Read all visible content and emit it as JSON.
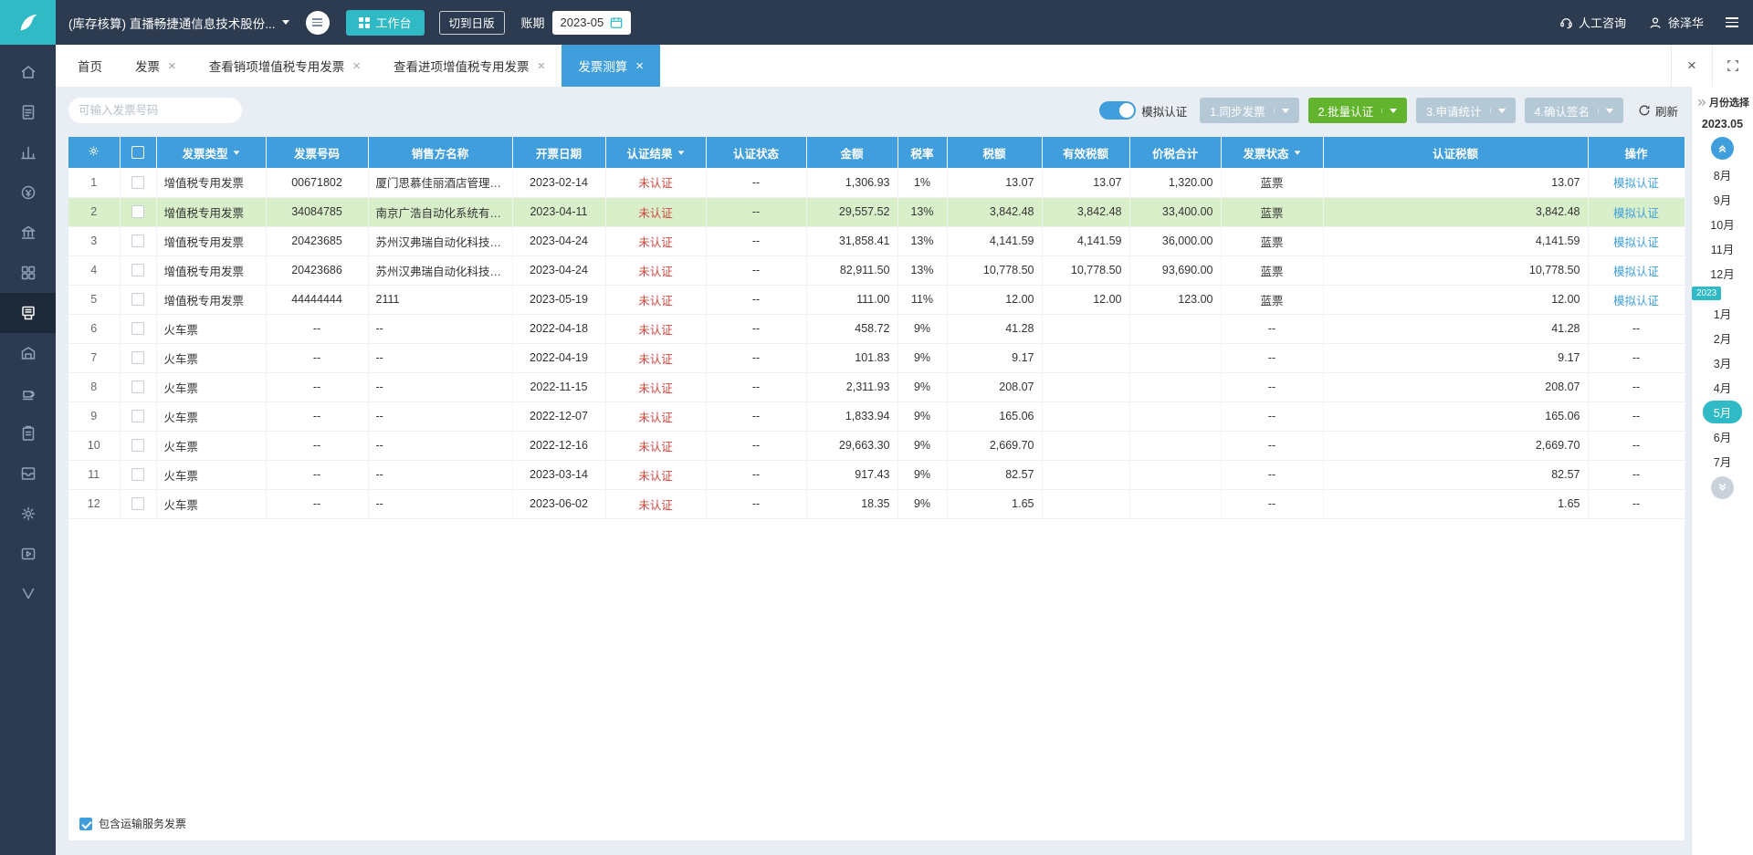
{
  "topbar": {
    "company": "(库存核算) 直播畅捷通信息技术股份...",
    "workbench_label": "工作台",
    "switch_label": "切到日版",
    "period_label": "账期",
    "period_value": "2023-05",
    "consult_label": "人工咨询",
    "username": "徐泽华"
  },
  "sidebar": {
    "items": [
      {
        "icon": "home-icon",
        "active": false
      },
      {
        "icon": "bills-icon",
        "active": false
      },
      {
        "icon": "chart-icon",
        "active": false
      },
      {
        "icon": "funds-icon",
        "active": false
      },
      {
        "icon": "bank-icon",
        "active": false
      },
      {
        "icon": "apps-icon",
        "active": false
      },
      {
        "icon": "invoice-icon",
        "active": true
      },
      {
        "icon": "warehouse-icon",
        "active": false
      },
      {
        "icon": "service-icon",
        "active": false
      },
      {
        "icon": "report-icon",
        "active": false
      },
      {
        "icon": "archive-icon",
        "active": false
      },
      {
        "icon": "settings-icon",
        "active": false
      },
      {
        "icon": "video-icon",
        "active": false
      },
      {
        "icon": "vip-icon",
        "active": false
      }
    ]
  },
  "tabs": [
    {
      "label": "首页",
      "closable": false,
      "active": false
    },
    {
      "label": "发票",
      "closable": true,
      "active": false
    },
    {
      "label": "查看销项增值税专用发票",
      "closable": true,
      "active": false
    },
    {
      "label": "查看进项增值税专用发票",
      "closable": true,
      "active": false
    },
    {
      "label": "发票测算",
      "closable": true,
      "active": true
    }
  ],
  "toolbar": {
    "search_placeholder": "可输入发票号码",
    "toggle_label": "模拟认证",
    "toggle_on": true,
    "actions": [
      {
        "label": "1.同步发票",
        "variant": "muted"
      },
      {
        "label": "2.批量认证",
        "variant": "green"
      },
      {
        "label": "3.申请统计",
        "variant": "muted"
      },
      {
        "label": "4.确认签名",
        "variant": "muted"
      }
    ],
    "refresh_label": "刷新"
  },
  "table": {
    "headers": {
      "type": "发票类型",
      "number": "发票号码",
      "seller": "销售方名称",
      "date": "开票日期",
      "result": "认证结果",
      "status": "认证状态",
      "amount": "金额",
      "rate": "税率",
      "tax": "税额",
      "valid_tax": "有效税额",
      "total": "价税合计",
      "inv_status": "发票状态",
      "auth_tax": "认证税额",
      "op": "操作"
    },
    "rows": [
      {
        "num": "1",
        "type": "增值税专用发票",
        "number": "00671802",
        "seller": "厦门思慕佳丽酒店管理有限...",
        "date": "2023-02-14",
        "result": "未认证",
        "status": "--",
        "amount": "1,306.93",
        "rate": "1%",
        "tax": "13.07",
        "valid_tax": "13.07",
        "total": "1,320.00",
        "inv_status": "蓝票",
        "auth_tax": "13.07",
        "op": "模拟认证",
        "highlight": false
      },
      {
        "num": "2",
        "type": "增值税专用发票",
        "number": "34084785",
        "seller": "南京广浩自动化系统有限责...",
        "date": "2023-04-11",
        "result": "未认证",
        "status": "--",
        "amount": "29,557.52",
        "rate": "13%",
        "tax": "3,842.48",
        "valid_tax": "3,842.48",
        "total": "33,400.00",
        "inv_status": "蓝票",
        "auth_tax": "3,842.48",
        "op": "模拟认证",
        "highlight": true
      },
      {
        "num": "3",
        "type": "增值税专用发票",
        "number": "20423685",
        "seller": "苏州汉弗瑞自动化科技有限...",
        "date": "2023-04-24",
        "result": "未认证",
        "status": "--",
        "amount": "31,858.41",
        "rate": "13%",
        "tax": "4,141.59",
        "valid_tax": "4,141.59",
        "total": "36,000.00",
        "inv_status": "蓝票",
        "auth_tax": "4,141.59",
        "op": "模拟认证",
        "highlight": false
      },
      {
        "num": "4",
        "type": "增值税专用发票",
        "number": "20423686",
        "seller": "苏州汉弗瑞自动化科技有限...",
        "date": "2023-04-24",
        "result": "未认证",
        "status": "--",
        "amount": "82,911.50",
        "rate": "13%",
        "tax": "10,778.50",
        "valid_tax": "10,778.50",
        "total": "93,690.00",
        "inv_status": "蓝票",
        "auth_tax": "10,778.50",
        "op": "模拟认证",
        "highlight": false
      },
      {
        "num": "5",
        "type": "增值税专用发票",
        "number": "44444444",
        "seller": "2111",
        "date": "2023-05-19",
        "result": "未认证",
        "status": "--",
        "amount": "111.00",
        "rate": "11%",
        "tax": "12.00",
        "valid_tax": "12.00",
        "total": "123.00",
        "inv_status": "蓝票",
        "auth_tax": "12.00",
        "op": "模拟认证",
        "highlight": false
      },
      {
        "num": "6",
        "type": "火车票",
        "number": "--",
        "seller": "--",
        "date": "2022-04-18",
        "result": "未认证",
        "status": "--",
        "amount": "458.72",
        "rate": "9%",
        "tax": "41.28",
        "valid_tax": "",
        "total": "",
        "inv_status": "--",
        "auth_tax": "41.28",
        "op": "--",
        "highlight": false
      },
      {
        "num": "7",
        "type": "火车票",
        "number": "--",
        "seller": "--",
        "date": "2022-04-19",
        "result": "未认证",
        "status": "--",
        "amount": "101.83",
        "rate": "9%",
        "tax": "9.17",
        "valid_tax": "",
        "total": "",
        "inv_status": "--",
        "auth_tax": "9.17",
        "op": "--",
        "highlight": false
      },
      {
        "num": "8",
        "type": "火车票",
        "number": "--",
        "seller": "--",
        "date": "2022-11-15",
        "result": "未认证",
        "status": "--",
        "amount": "2,311.93",
        "rate": "9%",
        "tax": "208.07",
        "valid_tax": "",
        "total": "",
        "inv_status": "--",
        "auth_tax": "208.07",
        "op": "--",
        "highlight": false
      },
      {
        "num": "9",
        "type": "火车票",
        "number": "--",
        "seller": "--",
        "date": "2022-12-07",
        "result": "未认证",
        "status": "--",
        "amount": "1,833.94",
        "rate": "9%",
        "tax": "165.06",
        "valid_tax": "",
        "total": "",
        "inv_status": "--",
        "auth_tax": "165.06",
        "op": "--",
        "highlight": false
      },
      {
        "num": "10",
        "type": "火车票",
        "number": "--",
        "seller": "--",
        "date": "2022-12-16",
        "result": "未认证",
        "status": "--",
        "amount": "29,663.30",
        "rate": "9%",
        "tax": "2,669.70",
        "valid_tax": "",
        "total": "",
        "inv_status": "--",
        "auth_tax": "2,669.70",
        "op": "--",
        "highlight": false
      },
      {
        "num": "11",
        "type": "火车票",
        "number": "--",
        "seller": "--",
        "date": "2023-03-14",
        "result": "未认证",
        "status": "--",
        "amount": "917.43",
        "rate": "9%",
        "tax": "82.57",
        "valid_tax": "",
        "total": "",
        "inv_status": "--",
        "auth_tax": "82.57",
        "op": "--",
        "highlight": false
      },
      {
        "num": "12",
        "type": "火车票",
        "number": "--",
        "seller": "--",
        "date": "2023-06-02",
        "result": "未认证",
        "status": "--",
        "amount": "18.35",
        "rate": "9%",
        "tax": "1.65",
        "valid_tax": "",
        "total": "",
        "inv_status": "--",
        "auth_tax": "1.65",
        "op": "--",
        "highlight": false
      }
    ]
  },
  "month_panel": {
    "title": "月份选择",
    "current": "2023.05",
    "months": [
      "8月",
      "9月",
      "10月",
      "11月",
      "12月",
      "1月",
      "2月",
      "3月",
      "4月",
      "5月",
      "6月",
      "7月"
    ],
    "selected": "5月",
    "year_badge": {
      "label": "2023",
      "before": "1月"
    }
  },
  "footer": {
    "transport_checkbox_label": "包含运输服务发票",
    "transport_checkbox_checked": true
  },
  "colors": {
    "accent_teal": "#2fbac5",
    "header_blue": "#3f9edb",
    "green_button": "#62b42d",
    "highlight_row": "#d8efca",
    "danger_text": "#d0453e",
    "navy": "#2c3b50"
  }
}
